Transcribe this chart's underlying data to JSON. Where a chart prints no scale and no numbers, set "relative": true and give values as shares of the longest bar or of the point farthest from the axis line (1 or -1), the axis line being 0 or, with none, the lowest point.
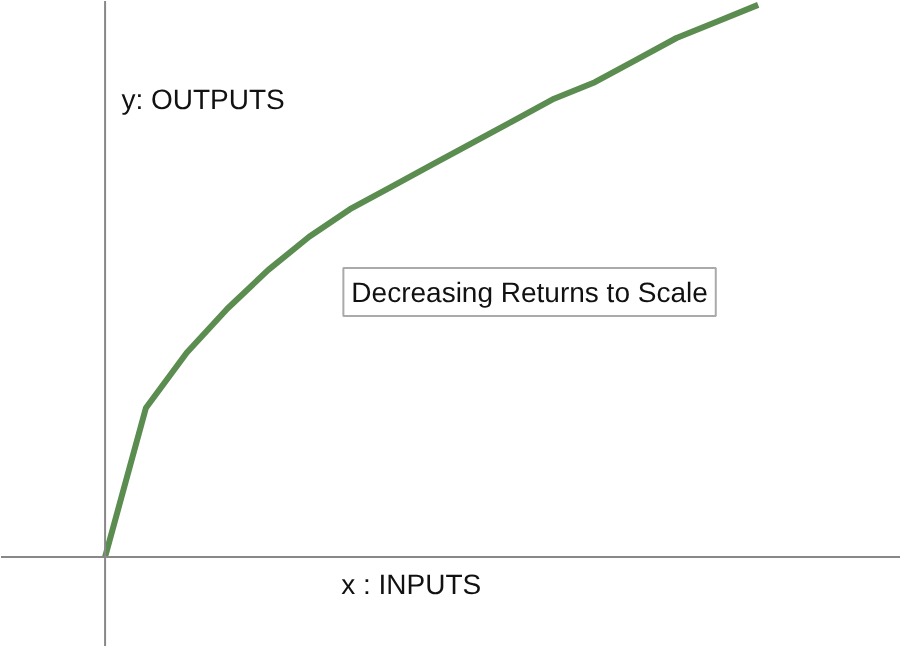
{
  "chart_data": {
    "type": "line",
    "relative": true,
    "xlabel": "x : INPUTS",
    "ylabel": "y: OUTPUTS",
    "annotations": [
      "Decreasing Returns to Scale"
    ],
    "categories": [
      null,
      null,
      null,
      null,
      null,
      null,
      null,
      null,
      null,
      null,
      null,
      null,
      null,
      null,
      null,
      null,
      null
    ],
    "series": [
      {
        "color": "#5b8c50",
        "values": [
          0,
          0.27,
          0.37,
          0.45,
          0.52,
          0.58,
          0.63,
          0.67,
          0.71,
          0.75,
          0.79,
          0.83,
          0.86,
          0.9,
          0.94,
          0.97,
          1.0
        ]
      }
    ],
    "grid": false,
    "marker": "none",
    "line_style": "solid"
  }
}
